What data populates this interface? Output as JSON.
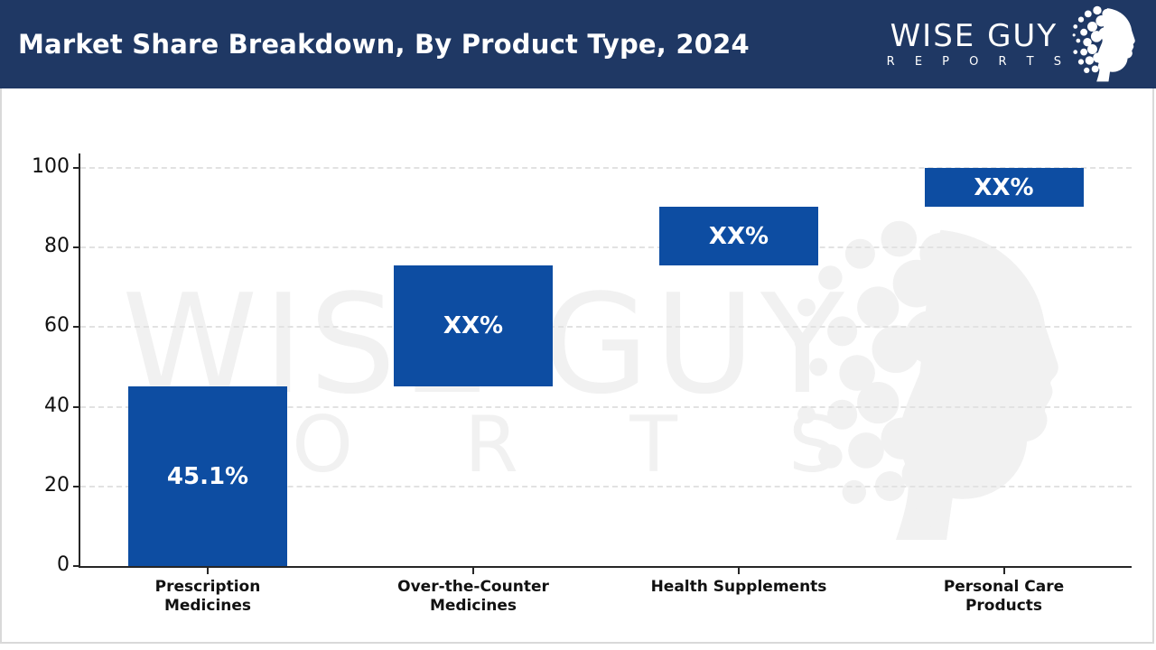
{
  "header": {
    "title": "Market Share Breakdown, By Product Type, 2024",
    "logo": {
      "line1": "WISE GUY",
      "line2": "R E P O R T S"
    }
  },
  "watermark": {
    "line1": "WISE GUY",
    "line2": "P O R T S"
  },
  "chart_data": {
    "type": "bar",
    "subtype": "waterfall",
    "title": "Market Share Breakdown, By Product Type, 2024",
    "categories": [
      "Prescription Medicines",
      "Over-the-Counter Medicines",
      "Health Supplements",
      "Personal Care Products"
    ],
    "category_lines": [
      [
        "Prescription",
        "Medicines"
      ],
      [
        "Over-the-Counter",
        "Medicines"
      ],
      [
        "Health Supplements"
      ],
      [
        "Personal Care",
        "Products"
      ]
    ],
    "segments": [
      {
        "category": "Prescription Medicines",
        "base": 0,
        "top": 45.1,
        "label": "45.1%"
      },
      {
        "category": "Over-the-Counter Medicines",
        "base": 45.1,
        "top": 75.4,
        "label": "XX%"
      },
      {
        "category": "Health Supplements",
        "base": 75.4,
        "top": 90.2,
        "label": "XX%"
      },
      {
        "category": "Personal Care Products",
        "base": 90.2,
        "top": 100,
        "label": "XX%"
      }
    ],
    "xlabel": "",
    "ylabel": "",
    "yticks": [
      0,
      20,
      40,
      60,
      80,
      100
    ],
    "ylim": [
      0,
      100
    ],
    "grid": "horizontal dashed",
    "legend": "none"
  },
  "colors": {
    "header_bg": "#1f3864",
    "bar": "#0d4da2",
    "grid": "#e2e2e2",
    "axis": "#262626",
    "watermark": "#f1f1f1",
    "bar_label": "#ffffff"
  }
}
